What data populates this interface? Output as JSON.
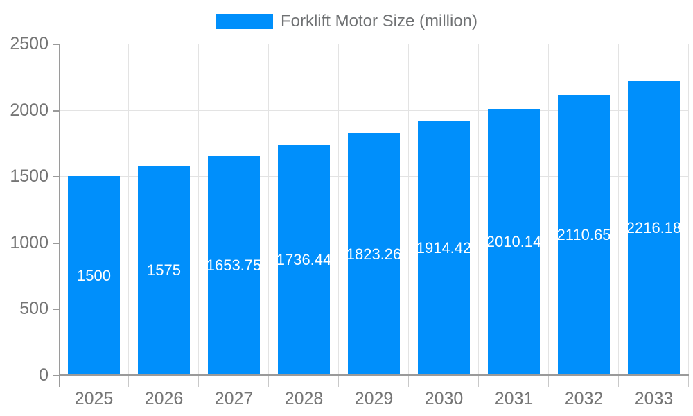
{
  "legend": {
    "label": "Forklift Motor Size (million)"
  },
  "chart_data": {
    "type": "bar",
    "title": "Forklift Motor Size (million)",
    "categories": [
      "2025",
      "2026",
      "2027",
      "2028",
      "2029",
      "2030",
      "2031",
      "2032",
      "2033"
    ],
    "series": [
      {
        "name": "Forklift Motor Size (million)",
        "values": [
          1500,
          1575,
          1653.75,
          1736.44,
          1823.26,
          1914.42,
          2010.14,
          2110.65,
          2216.18
        ],
        "value_labels": [
          "1500",
          "1575",
          "1653.75",
          "1736.44",
          "1823.26",
          "1914.42",
          "2010.14",
          "2110.65",
          "2216.18"
        ]
      }
    ],
    "xlabel": "",
    "ylabel": "",
    "ylim": [
      0,
      2500
    ],
    "yticks": [
      0,
      500,
      1000,
      1500,
      2000,
      2500
    ],
    "grid": true,
    "legend_position": "top",
    "colors": {
      "bar": "#008FFB",
      "data_label": "#ffffff",
      "grid_line": "#e3e3e3",
      "axis_line": "#9a9a9a",
      "tick_text": "#757575",
      "legend_text": "#6f7173",
      "background": "#ffffff"
    }
  }
}
